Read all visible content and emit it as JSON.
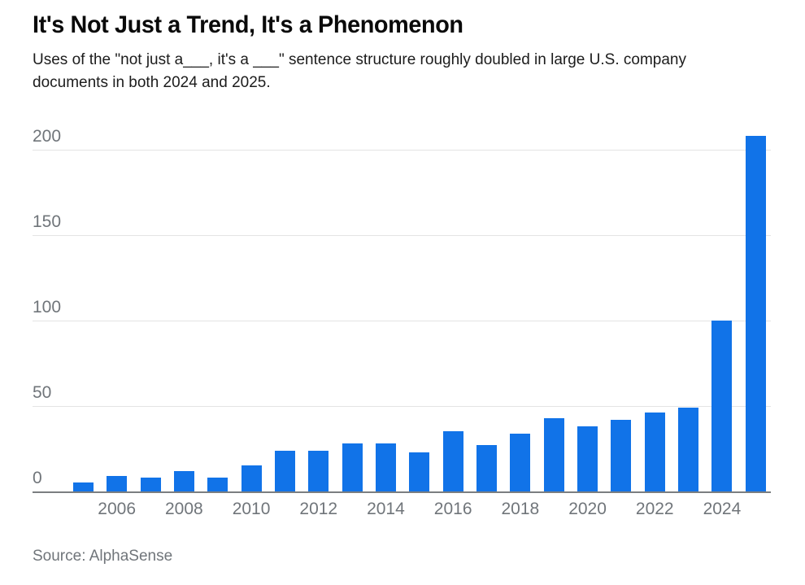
{
  "colors": {
    "background": "#ffffff",
    "bar": "#1173e8",
    "grid": "#e4e4e4",
    "axis_line": "#7b7e81",
    "tick_label": "#70757a",
    "title": "#0a0a0a",
    "subtitle": "#1c1c1c",
    "source": "#70757a"
  },
  "chart_data": {
    "type": "bar",
    "title": "It's Not Just a Trend, It's a Phenomenon",
    "subtitle": "Uses of the \"not just a___, it's a ___\" sentence structure roughly doubled in large U.S. company documents in both 2024 and 2025.",
    "source": "Source: AlphaSense",
    "categories": [
      2005,
      2006,
      2007,
      2008,
      2009,
      2010,
      2011,
      2012,
      2013,
      2014,
      2015,
      2016,
      2017,
      2018,
      2019,
      2020,
      2021,
      2022,
      2023,
      2024,
      2025
    ],
    "values": [
      5,
      9,
      8,
      12,
      8,
      15,
      24,
      24,
      28,
      28,
      23,
      35,
      27,
      34,
      43,
      38,
      42,
      46,
      49,
      100,
      208
    ],
    "series_name": "Uses per year",
    "xlabel": "",
    "ylabel": "",
    "ylim": [
      0,
      215
    ],
    "yticks": [
      0,
      50,
      100,
      150,
      200
    ],
    "xtick_labels": [
      "2006",
      "2008",
      "2010",
      "2012",
      "2014",
      "2016",
      "2018",
      "2020",
      "2022",
      "2024"
    ],
    "grid": "horizontal",
    "legend": "none",
    "bar_color": "#1173e8"
  }
}
